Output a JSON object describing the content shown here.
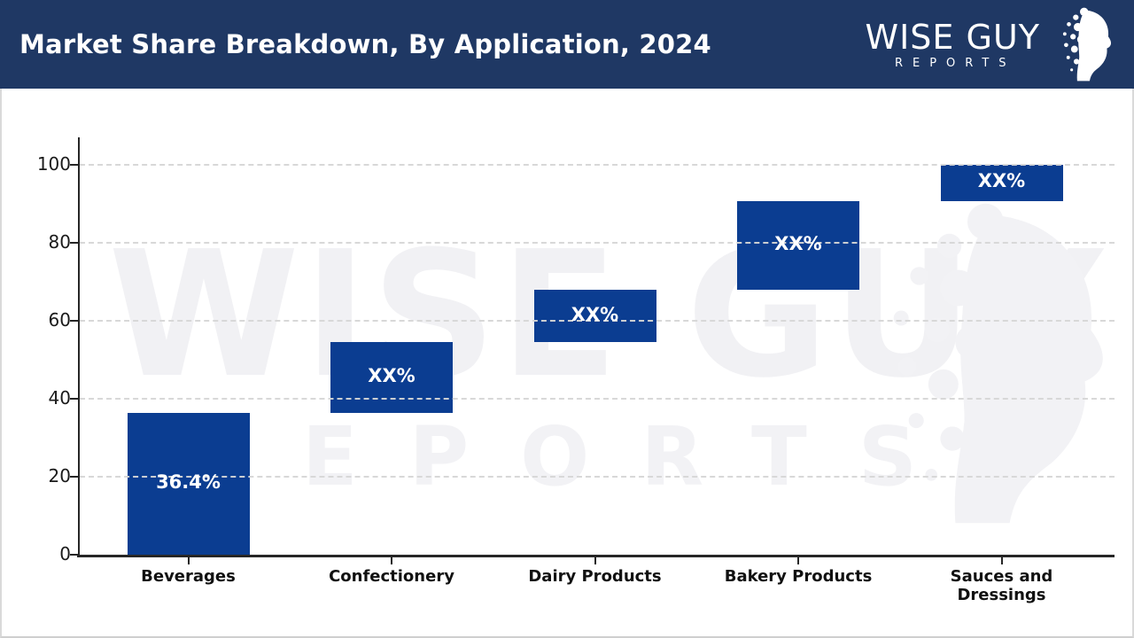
{
  "header": {
    "title": "Market Share Breakdown, By Application, 2024",
    "bg_color": "#1f3864",
    "logo": {
      "line1": "WISE GUY",
      "line2": "REPORTS"
    }
  },
  "watermark": {
    "line1": "WISE GUY",
    "line2": "REPORTS"
  },
  "chart_data": {
    "type": "bar",
    "subtype": "waterfall",
    "title": "Market Share Breakdown, By Application, 2024",
    "categories": [
      "Beverages",
      "Confectionery",
      "Dairy Products",
      "Bakery Products",
      "Sauces and Dressings"
    ],
    "segments": [
      {
        "category": "Beverages",
        "start": 0,
        "end": 36.4,
        "label": "36.4%"
      },
      {
        "category": "Confectionery",
        "start": 36.4,
        "end": 54.5,
        "label": "XX%"
      },
      {
        "category": "Dairy Products",
        "start": 54.5,
        "end": 68.0,
        "label": "XX%"
      },
      {
        "category": "Bakery Products",
        "start": 68.0,
        "end": 90.7,
        "label": "XX%"
      },
      {
        "category": "Sauces and Dressings",
        "start": 90.7,
        "end": 100,
        "label": "XX%"
      }
    ],
    "xlabel": "",
    "ylabel": "",
    "yticks": [
      0,
      20,
      40,
      60,
      80,
      100
    ],
    "ylim": [
      0,
      107
    ],
    "grid": true,
    "gridline_style": "dashed",
    "legend": "none",
    "bar_color": "#0b3d91",
    "bar_label_color": "#ffffff",
    "axis_color": "#262626",
    "grid_color": "#d6d6d6"
  }
}
